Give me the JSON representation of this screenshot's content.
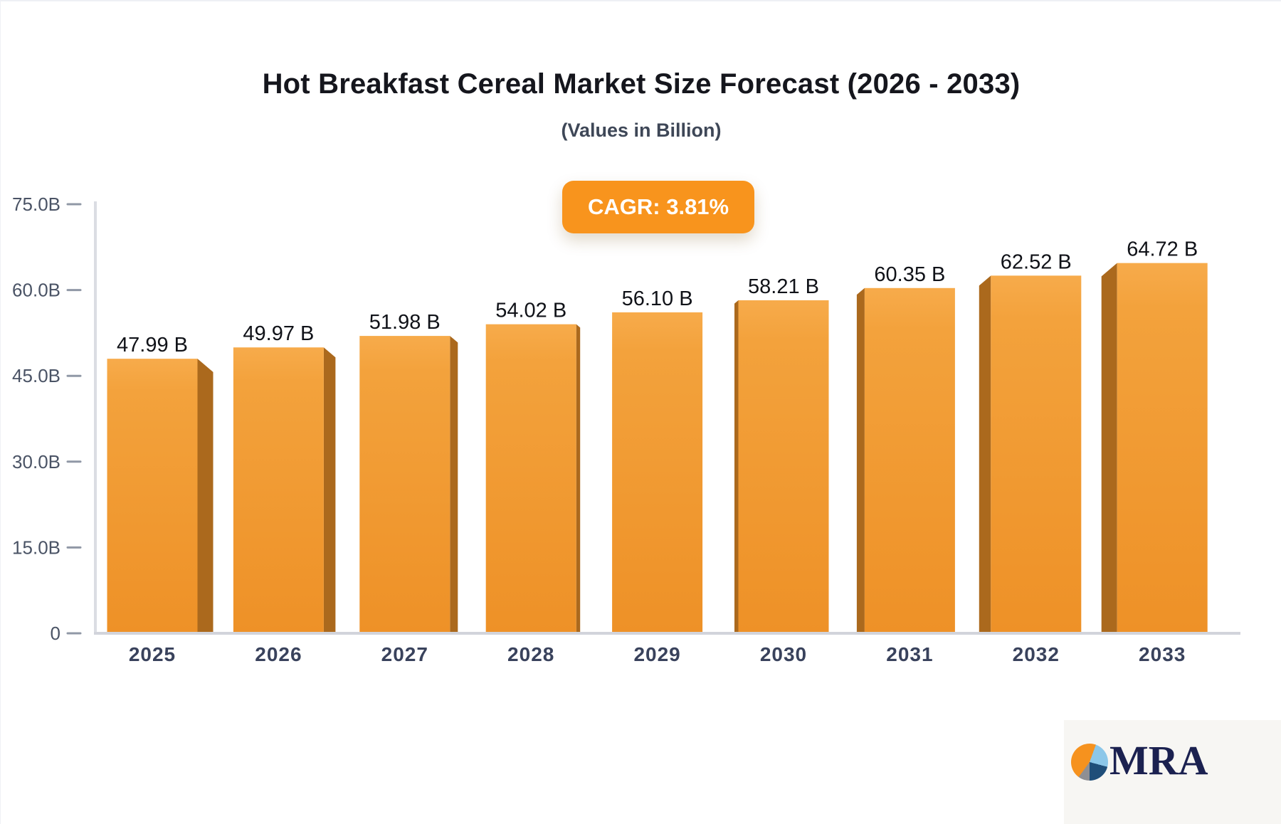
{
  "chart_data": {
    "type": "bar",
    "title": "Hot Breakfast Cereal Market Size Forecast (2026 - 2033)",
    "subtitle": "(Values in Billion)",
    "cagr_label": "CAGR: 3.81%",
    "categories": [
      "2025",
      "2026",
      "2027",
      "2028",
      "2029",
      "2030",
      "2031",
      "2032",
      "2033"
    ],
    "values": [
      47.99,
      49.97,
      51.98,
      54.02,
      56.1,
      58.21,
      60.35,
      62.52,
      64.72
    ],
    "value_labels": [
      "47.99 B",
      "49.97 B",
      "51.98 B",
      "54.02 B",
      "56.10 B",
      "58.21 B",
      "60.35 B",
      "62.52 B",
      "64.72 B"
    ],
    "xlabel": "",
    "ylabel": "",
    "ylim": [
      0,
      75
    ],
    "y_ticks": [
      {
        "value": 0,
        "label": "0"
      },
      {
        "value": 15,
        "label": "15.0B"
      },
      {
        "value": 30,
        "label": "30.0B"
      },
      {
        "value": 45,
        "label": "45.0B"
      },
      {
        "value": 60,
        "label": "60.0B"
      },
      {
        "value": 75,
        "label": "75.0B"
      }
    ],
    "grid": false,
    "legend": "none",
    "style": "3d-perspective-bars, vanishing point at chart center",
    "colors": {
      "bar_face_top": "#f7ab4b",
      "bar_face_bottom": "#ee9127",
      "bar_side": "#ab691d",
      "axis_line": "#dbdde3",
      "baseline": "#d2d4db",
      "tick_dash": "#9098a6",
      "badge_bg": "#f8941d",
      "badge_text": "#ffffff"
    }
  },
  "logo": {
    "text": "MRA",
    "icon": "pie-chart-icon",
    "icon_colors": [
      "#f6921e",
      "#8cc7e9",
      "#1f4e79",
      "#8f8f93"
    ],
    "text_color": "#1b2150"
  }
}
